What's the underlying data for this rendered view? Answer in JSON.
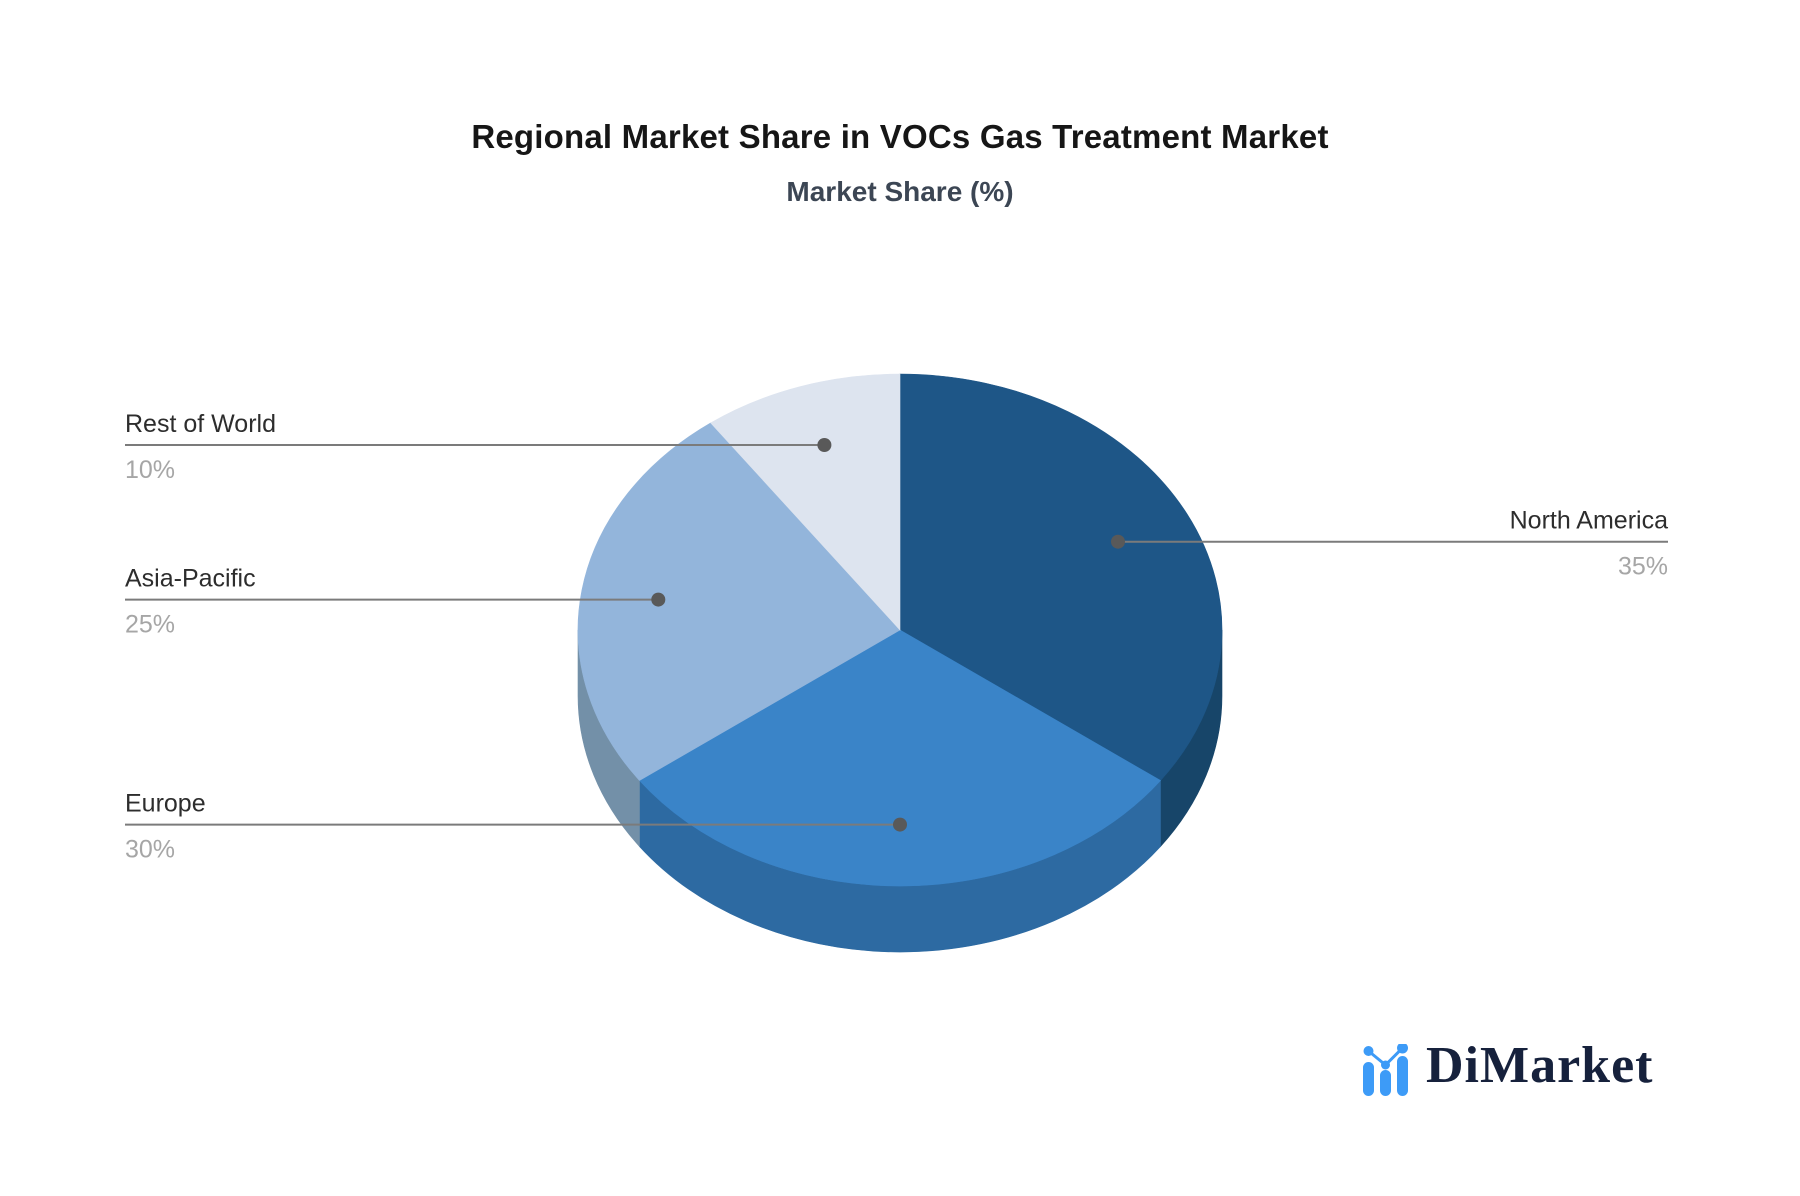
{
  "header": {
    "title": "Regional Market Share in VOCs Gas Treatment Market",
    "subtitle": "Market Share (%)"
  },
  "logo": {
    "text": "DiMarket",
    "icon": "bar-line-chart-icon"
  },
  "colors": {
    "background": "#ffffff",
    "title_text": "#161616",
    "subtitle_text": "#3c4654",
    "label_text": "#2d2d2d",
    "percent_text": "#a6a6a6",
    "leader_line": "#7b7b7b",
    "leader_dot": "#595959",
    "logo_icon": "#3d9bf7",
    "logo_text": "#16213c"
  },
  "chart_data": {
    "type": "pie",
    "title": "Regional Market Share in VOCs Gas Treatment Market",
    "subtitle": "Market Share (%)",
    "unit": "%",
    "effect_3d": true,
    "start_angle_deg": 0,
    "direction": "clockwise",
    "legend_position": "none",
    "categories": [
      "North America",
      "Europe",
      "Asia-Pacific",
      "Rest of World"
    ],
    "values": [
      35,
      30,
      25,
      10
    ],
    "series": [
      {
        "label": "North America",
        "value": 35,
        "percent_label": "35%",
        "color": "#1e5687",
        "side_color": "#174569",
        "label_side": "right"
      },
      {
        "label": "Europe",
        "value": 30,
        "percent_label": "30%",
        "color": "#3a84c8",
        "side_color": "#2d6aa2",
        "label_side": "left"
      },
      {
        "label": "Asia-Pacific",
        "value": 25,
        "percent_label": "25%",
        "color": "#93b5db",
        "side_color": "#7390a8",
        "label_side": "left"
      },
      {
        "label": "Rest of World",
        "value": 10,
        "percent_label": "10%",
        "color": "#dde4ef",
        "side_color": "#b8c3d4",
        "label_side": "left"
      }
    ]
  }
}
